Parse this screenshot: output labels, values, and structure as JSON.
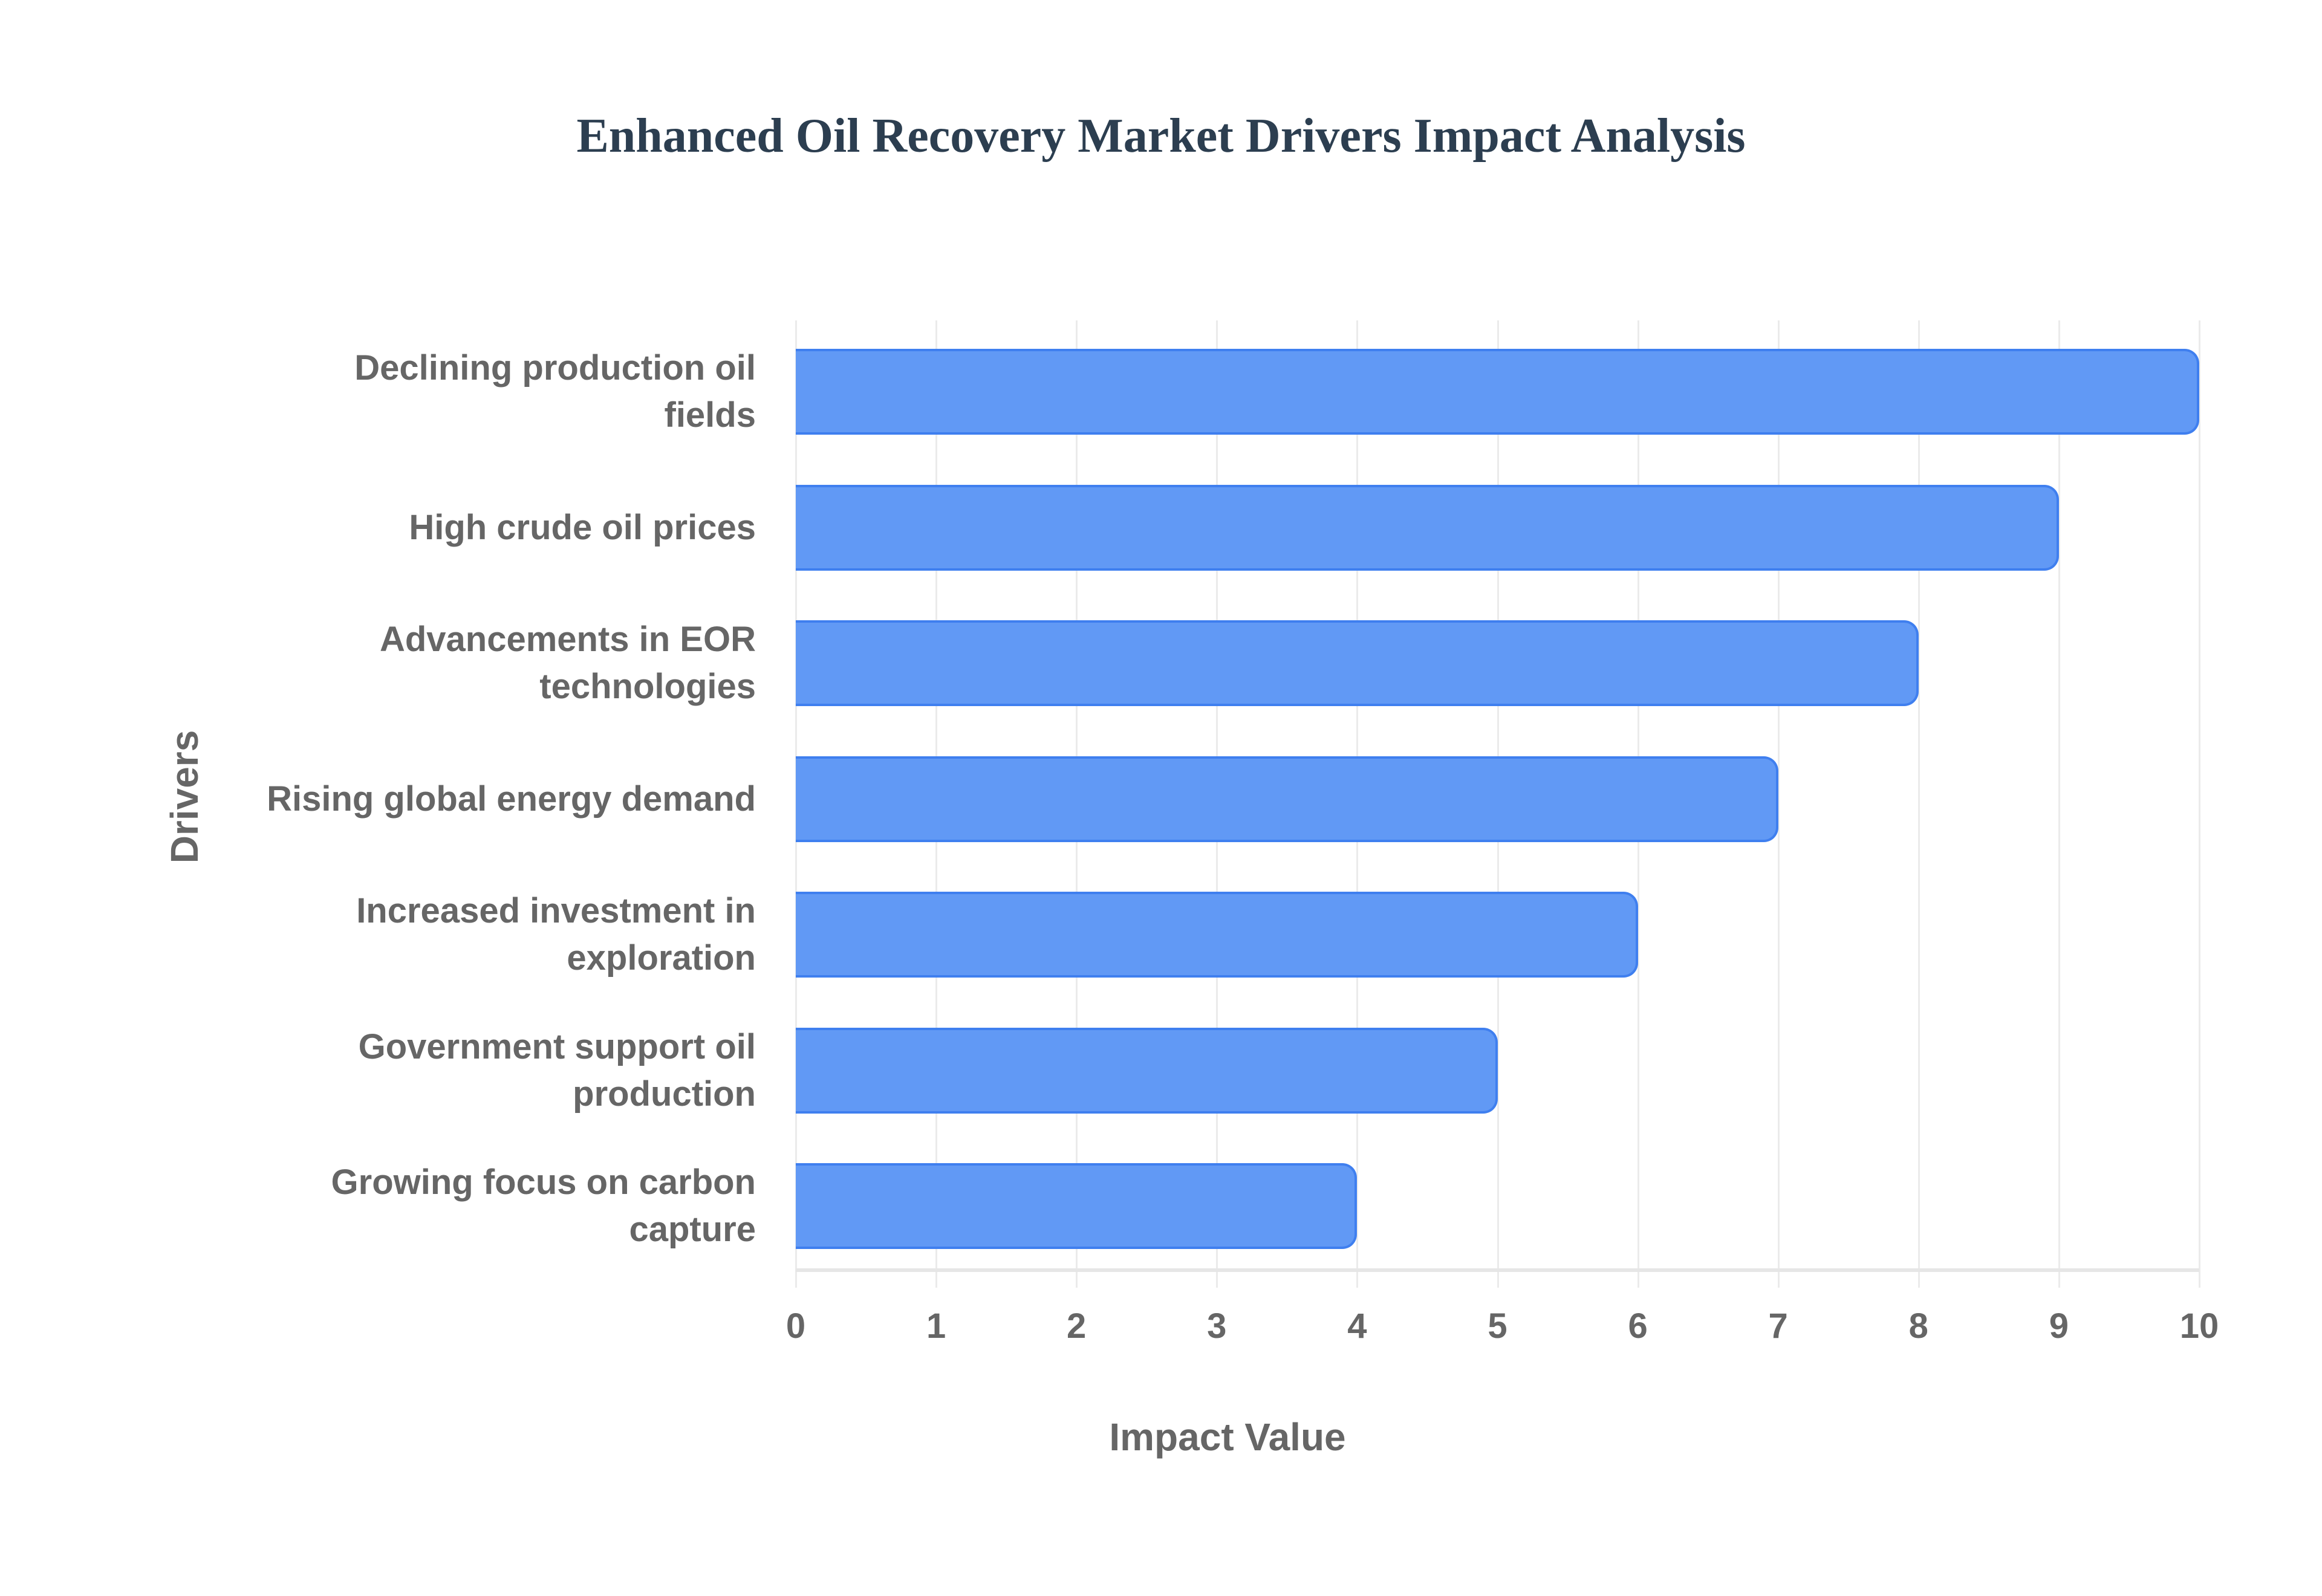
{
  "chart_data": {
    "type": "bar",
    "orientation": "horizontal",
    "title": "Enhanced Oil Recovery Market Drivers Impact Analysis",
    "xlabel": "Impact Value",
    "ylabel": "Drivers",
    "categories": [
      "Declining production oil fields",
      "High crude oil prices",
      "Advancements in EOR technologies",
      "Rising global energy demand",
      "Increased investment in exploration",
      "Government support oil production",
      "Growing focus on carbon capture"
    ],
    "category_lines": [
      [
        "Declining production oil",
        "fields"
      ],
      [
        "High crude oil prices"
      ],
      [
        "Advancements in EOR",
        "technologies"
      ],
      [
        "Rising global energy demand"
      ],
      [
        "Increased investment in",
        "exploration"
      ],
      [
        "Government support oil",
        "production"
      ],
      [
        "Growing focus on carbon",
        "capture"
      ]
    ],
    "values": [
      10,
      9,
      8,
      7,
      6,
      5,
      4
    ],
    "xlim": [
      0,
      10
    ],
    "xticks": [
      "0",
      "1",
      "2",
      "3",
      "4",
      "5",
      "6",
      "7",
      "8",
      "9",
      "10"
    ],
    "grid": true,
    "legend": null,
    "bar_color": "#6199f5",
    "bar_border_color": "#3f7fef"
  }
}
